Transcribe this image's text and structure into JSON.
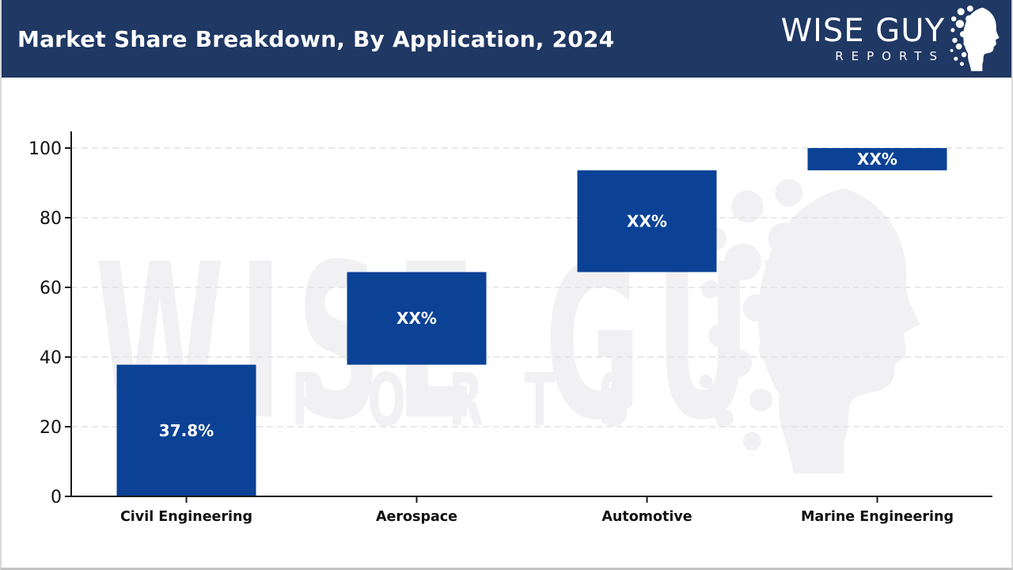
{
  "header": {
    "title": "Market Share Breakdown, By Application, 2024",
    "background_color": "#1f3864",
    "logo": {
      "name": "WISE GUY",
      "tagline": "REPORTS"
    }
  },
  "watermark": {
    "line1": "WISE GUY",
    "line2": "REPORTS"
  },
  "chart_data": {
    "type": "bar",
    "variant": "waterfall",
    "title": "Market Share Breakdown, By Application, 2024",
    "categories": [
      "Civil Engineering",
      "Aerospace",
      "Automotive",
      "Marine Engineering"
    ],
    "bars": [
      {
        "category": "Civil Engineering",
        "start": 0,
        "end": 37.8,
        "label": "37.8%"
      },
      {
        "category": "Aerospace",
        "start": 37.8,
        "end": 64.4,
        "label": "XX%"
      },
      {
        "category": "Automotive",
        "start": 64.4,
        "end": 93.6,
        "label": "XX%"
      },
      {
        "category": "Marine Engineering",
        "start": 93.6,
        "end": 100,
        "label": "XX%"
      }
    ],
    "ylim": [
      0,
      105
    ],
    "yticks": [
      0,
      20,
      40,
      60,
      80,
      100
    ],
    "grid": "horizontal-dashed",
    "legend": "none",
    "colors": {
      "bar": "#0b4296",
      "bar_label": "#ffffff",
      "axis": "#1a1a1a",
      "grid": "#e2e2e2",
      "tick_label": "#111111"
    }
  }
}
